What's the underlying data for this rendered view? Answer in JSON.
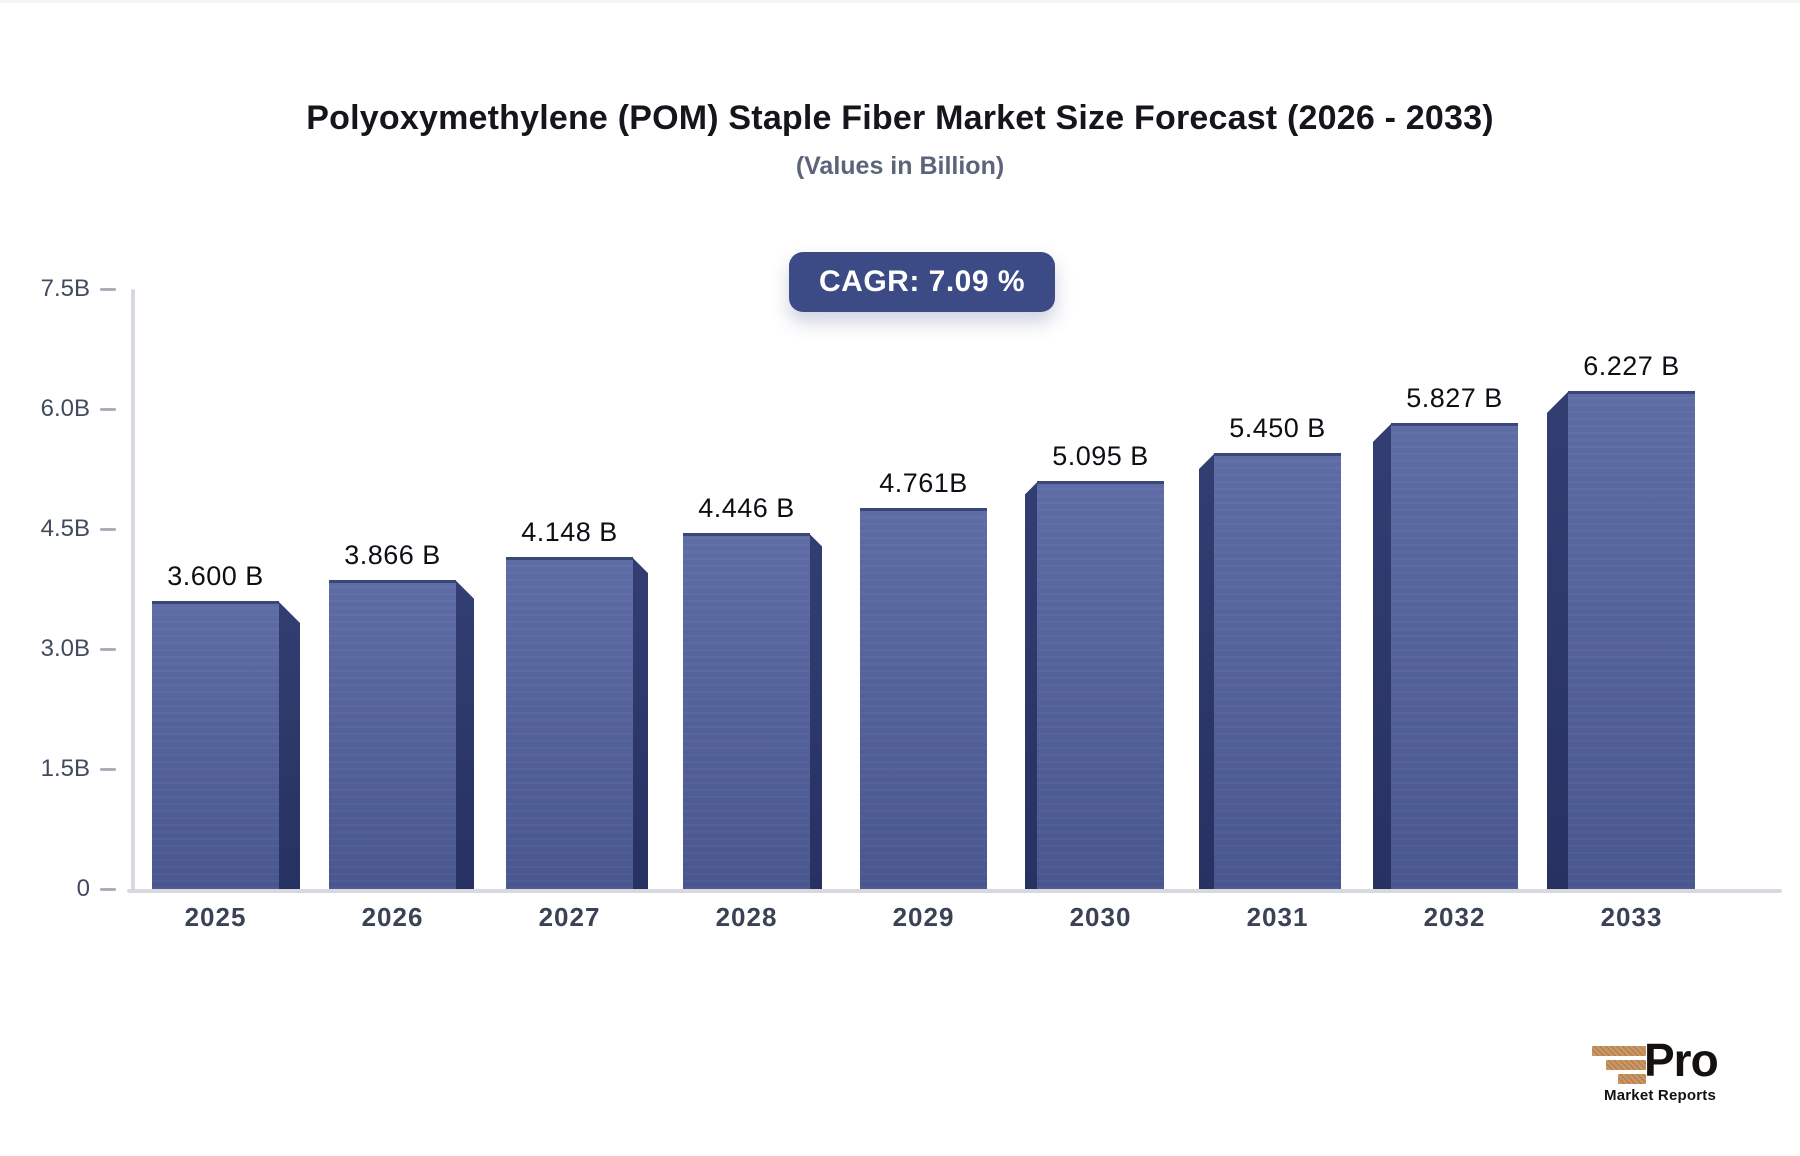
{
  "title": "Polyoxymethylene (POM) Staple Fiber Market Size Forecast (2026 - 2033)",
  "subtitle": "(Values in Billion)",
  "cagr_badge": "CAGR: 7.09 %",
  "chart_data": {
    "type": "bar",
    "style": "pseudo-3d-perspective-bars",
    "title": "Polyoxymethylene (POM) Staple Fiber Market Size Forecast (2026 - 2033)",
    "subtitle": "(Values in Billion)",
    "unit": "Billion",
    "categories": [
      "2025",
      "2026",
      "2027",
      "2028",
      "2029",
      "2030",
      "2031",
      "2032",
      "2033"
    ],
    "values": [
      3.6,
      3.866,
      4.148,
      4.446,
      4.761,
      5.095,
      5.45,
      5.827,
      6.227
    ],
    "value_labels": [
      "3.600 B",
      "3.866 B",
      "4.148 B",
      "4.446 B",
      "4.761B",
      "5.095 B",
      "5.450 B",
      "5.827 B",
      "6.227 B"
    ],
    "y_ticks": [
      {
        "label": "7.5B",
        "value": 7.5
      },
      {
        "label": "6.0B",
        "value": 6.0
      },
      {
        "label": "4.5B",
        "value": 4.5
      },
      {
        "label": "3.0B",
        "value": 3.0
      },
      {
        "label": "1.5B",
        "value": 1.5
      },
      {
        "label": "0",
        "value": 0
      }
    ],
    "ylim": [
      0,
      7.5
    ],
    "xlabel": "",
    "ylabel": "",
    "grid": false,
    "legend": false
  },
  "colors": {
    "bar_front_top": "#5e6ca6",
    "bar_front_bottom": "#49568f",
    "bar_side_top": "#323e72",
    "bar_side_bottom": "#273162",
    "bar_top_edge": "#3a4878",
    "badge_bg": "#3c4b85",
    "badge_text": "#ffffff",
    "axis_line": "#d7d9de",
    "tick_dash": "#a9aeb8",
    "title_text": "#14161c",
    "subtitle_text": "#5b6478",
    "value_label_text": "#0d0f14",
    "year_label_text": "#3a4255",
    "logo_accent": "#cc9662",
    "logo_text": "#15110e"
  },
  "logo": {
    "name": "Pro",
    "tagline": "Market Reports"
  }
}
